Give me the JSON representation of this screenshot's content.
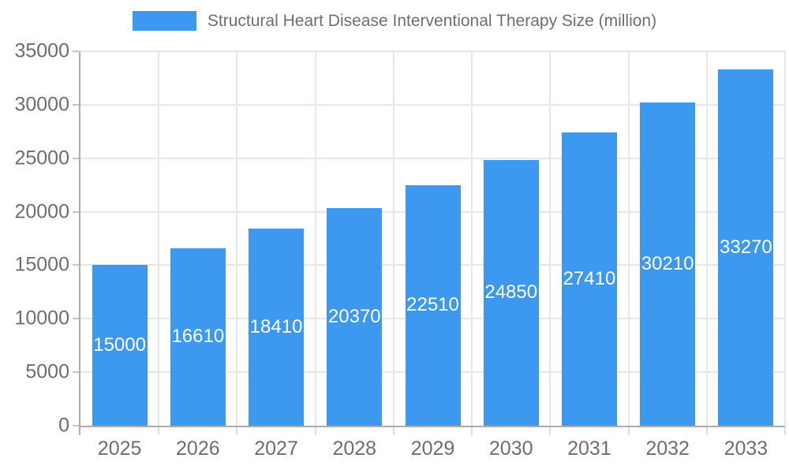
{
  "legend": {
    "position": "top",
    "entries": [
      {
        "label": "Structural Heart Disease Interventional Therapy Size (million)",
        "swatch_color": "#3D99F0"
      }
    ]
  },
  "chart_data": {
    "type": "bar",
    "title": "Structural Heart Disease Interventional Therapy Size (million)",
    "categories": [
      "2025",
      "2026",
      "2027",
      "2028",
      "2029",
      "2030",
      "2031",
      "2032",
      "2033"
    ],
    "values": [
      15000,
      16610,
      18410,
      20370,
      22510,
      24850,
      27410,
      30210,
      33270
    ],
    "bar_labels": [
      "15000",
      "16610",
      "18410",
      "20370",
      "22510",
      "24850",
      "27410",
      "30210",
      "33270"
    ],
    "xlabel": "",
    "ylabel": "",
    "ylim": [
      0,
      35000
    ],
    "yticks": [
      0,
      5000,
      10000,
      15000,
      20000,
      25000,
      30000,
      35000
    ],
    "grid": true,
    "legend_position": "top"
  },
  "colors": {
    "bar": "#3D99F0",
    "bar_label": "#FFFFFF",
    "axis_text": "#6E6E6E",
    "axis_line": "#ACACAC",
    "gridline": "#E7E7E7",
    "tick_y": "#C6C6C6",
    "tick_x": "#DEDEDE",
    "background": "#FFFFFF"
  }
}
